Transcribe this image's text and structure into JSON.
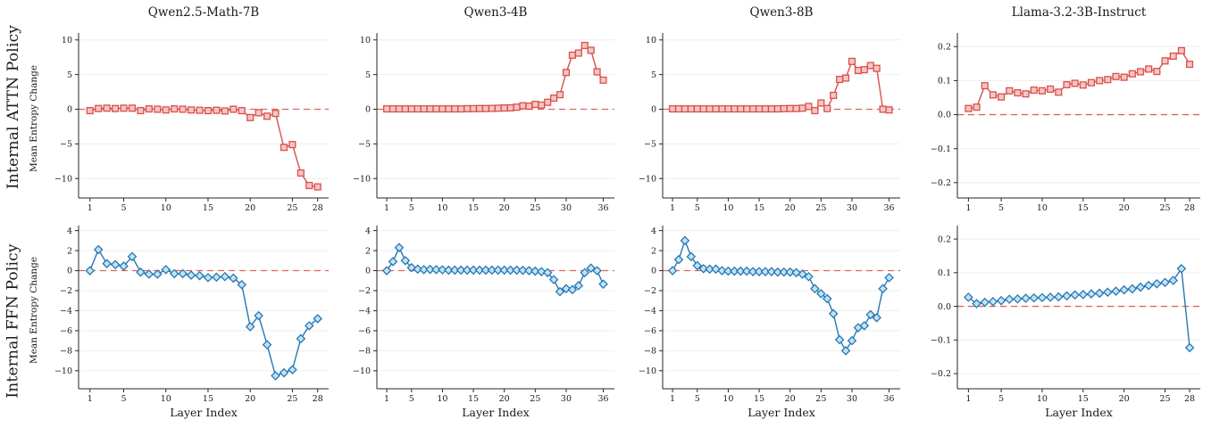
{
  "figure": {
    "row_labels": [
      "Internal ATTN Policy",
      "Internal FFN Policy"
    ],
    "y_axis_label": "Mean Entropy Change",
    "x_axis_label": "Layer Index",
    "colors": {
      "attn_line": "#d9504b",
      "attn_marker_fill": "#f6c6c3",
      "ffn_line": "#2678b2",
      "ffn_marker_fill": "#c3e2f4",
      "zero_line": "#e0635e",
      "axis": "#262626"
    }
  },
  "chart_data": [
    {
      "type": "line",
      "title": "Qwen2.5-Math-7B",
      "policy": "Internal ATTN Policy",
      "marker": "square",
      "line_color": "#d9504b",
      "marker_fill": "#f6c6c3",
      "zero_line": true,
      "x_first": 1,
      "x_last": 28,
      "xlim": [
        -0.35,
        29.3
      ],
      "ylim": [
        -12.8,
        11.0
      ],
      "xticks": [
        1,
        5,
        10,
        15,
        20,
        25,
        28
      ],
      "xtick_labels": [
        "1",
        "5",
        "10",
        "15",
        "20",
        "25",
        "28"
      ],
      "yticks": [
        10,
        5,
        0,
        -5,
        -10
      ],
      "ytick_labels": [
        "10",
        "5",
        "0",
        "−5",
        "−10"
      ],
      "values": [
        -0.2,
        0.1,
        0.15,
        0.1,
        0.15,
        0.15,
        -0.2,
        0.05,
        0.0,
        -0.1,
        0.05,
        0.0,
        -0.1,
        -0.15,
        -0.2,
        -0.15,
        -0.25,
        0.0,
        -0.2,
        -1.2,
        -0.5,
        -1.0,
        -0.6,
        -5.5,
        -5.1,
        -9.2,
        -11.0,
        -11.2
      ]
    },
    {
      "type": "line",
      "title": "Qwen3-4B",
      "policy": "Internal ATTN Policy",
      "marker": "square",
      "line_color": "#d9504b",
      "marker_fill": "#f6c6c3",
      "zero_line": true,
      "x_first": 1,
      "x_last": 36,
      "xlim": [
        -0.6,
        37.8
      ],
      "ylim": [
        -12.8,
        11.0
      ],
      "xticks": [
        1,
        5,
        10,
        15,
        20,
        25,
        30,
        36
      ],
      "xtick_labels": [
        "1",
        "5",
        "10",
        "15",
        "20",
        "25",
        "30",
        "36"
      ],
      "yticks": [
        10,
        5,
        0,
        -5,
        -10
      ],
      "ytick_labels": [
        "10",
        "5",
        "0",
        "−5",
        "−10"
      ],
      "values": [
        0.05,
        0.05,
        0.05,
        0.05,
        0.05,
        0.05,
        0.05,
        0.05,
        0.05,
        0.05,
        0.05,
        0.05,
        0.05,
        0.08,
        0.08,
        0.1,
        0.1,
        0.12,
        0.15,
        0.18,
        0.2,
        0.3,
        0.5,
        0.45,
        0.7,
        0.6,
        1.0,
        1.6,
        2.1,
        5.3,
        7.8,
        8.1,
        9.2,
        8.5,
        5.4,
        4.2
      ]
    },
    {
      "type": "line",
      "title": "Qwen3-8B",
      "policy": "Internal ATTN Policy",
      "marker": "square",
      "line_color": "#d9504b",
      "marker_fill": "#f6c6c3",
      "zero_line": true,
      "x_first": 1,
      "x_last": 36,
      "xlim": [
        -0.6,
        37.8
      ],
      "ylim": [
        -12.8,
        11.0
      ],
      "xticks": [
        1,
        5,
        10,
        15,
        20,
        25,
        30,
        36
      ],
      "xtick_labels": [
        "1",
        "5",
        "10",
        "15",
        "20",
        "25",
        "30",
        "36"
      ],
      "yticks": [
        10,
        5,
        0,
        -5,
        -10
      ],
      "ytick_labels": [
        "10",
        "5",
        "0",
        "−5",
        "−10"
      ],
      "values": [
        0.05,
        0.05,
        0.05,
        0.05,
        0.05,
        0.05,
        0.05,
        0.05,
        0.05,
        0.05,
        0.05,
        0.05,
        0.05,
        0.05,
        0.05,
        0.05,
        0.05,
        0.05,
        0.08,
        0.1,
        0.1,
        0.15,
        0.4,
        -0.2,
        0.9,
        0.1,
        2.0,
        4.3,
        4.5,
        6.9,
        5.6,
        5.7,
        6.3,
        5.9,
        0.0,
        -0.1
      ]
    },
    {
      "type": "line",
      "title": "Llama-3.2-3B-Instruct",
      "policy": "Internal ATTN Policy",
      "marker": "square",
      "line_color": "#d9504b",
      "marker_fill": "#f6c6c3",
      "zero_line": true,
      "x_first": 1,
      "x_last": 28,
      "xlim": [
        -0.35,
        29.3
      ],
      "ylim": [
        -0.245,
        0.24
      ],
      "xticks": [
        1,
        5,
        10,
        15,
        20,
        25,
        28
      ],
      "xtick_labels": [
        "1",
        "5",
        "10",
        "15",
        "20",
        "25",
        "28"
      ],
      "yticks": [
        0.2,
        0.1,
        0.0,
        -0.1,
        -0.2
      ],
      "ytick_labels": [
        "0.2",
        "0.1",
        "0.0",
        "−0.1",
        "−0.2"
      ],
      "values": [
        0.018,
        0.022,
        0.085,
        0.058,
        0.052,
        0.07,
        0.064,
        0.061,
        0.072,
        0.07,
        0.075,
        0.066,
        0.088,
        0.092,
        0.087,
        0.094,
        0.1,
        0.103,
        0.112,
        0.11,
        0.12,
        0.126,
        0.134,
        0.127,
        0.158,
        0.172,
        0.188,
        0.148
      ]
    },
    {
      "type": "line",
      "policy": "Internal FFN Policy",
      "marker": "diamond",
      "line_color": "#2678b2",
      "marker_fill": "#c3e2f4",
      "zero_line": true,
      "x_first": 1,
      "x_last": 28,
      "xlim": [
        -0.35,
        29.3
      ],
      "ylim": [
        -11.8,
        4.5
      ],
      "xticks": [
        1,
        5,
        10,
        15,
        20,
        25,
        28
      ],
      "xtick_labels": [
        "1",
        "5",
        "10",
        "15",
        "20",
        "25",
        "28"
      ],
      "yticks": [
        4,
        2,
        0,
        -2,
        -4,
        -6,
        -8,
        -10
      ],
      "ytick_labels": [
        "4",
        "2",
        "0",
        "−2",
        "−4",
        "−6",
        "−8",
        "−10"
      ],
      "values": [
        0.0,
        2.1,
        0.7,
        0.6,
        0.45,
        1.4,
        -0.15,
        -0.35,
        -0.35,
        0.1,
        -0.3,
        -0.3,
        -0.45,
        -0.5,
        -0.7,
        -0.65,
        -0.6,
        -0.75,
        -1.4,
        -5.6,
        -4.5,
        -7.4,
        -10.5,
        -10.2,
        -9.9,
        -6.8,
        -5.5,
        -4.8
      ]
    },
    {
      "type": "line",
      "policy": "Internal FFN Policy",
      "marker": "diamond",
      "line_color": "#2678b2",
      "marker_fill": "#c3e2f4",
      "zero_line": true,
      "x_first": 1,
      "x_last": 36,
      "xlim": [
        -0.6,
        37.8
      ],
      "ylim": [
        -11.8,
        4.5
      ],
      "xticks": [
        1,
        5,
        10,
        15,
        20,
        25,
        30,
        36
      ],
      "xtick_labels": [
        "1",
        "5",
        "10",
        "15",
        "20",
        "25",
        "30",
        "36"
      ],
      "yticks": [
        4,
        2,
        0,
        -2,
        -4,
        -6,
        -8,
        -10
      ],
      "ytick_labels": [
        "4",
        "2",
        "0",
        "−2",
        "−4",
        "−6",
        "−8",
        "−10"
      ],
      "values": [
        0.0,
        0.9,
        2.3,
        1.0,
        0.3,
        0.15,
        0.1,
        0.12,
        0.1,
        0.08,
        0.05,
        0.05,
        0.05,
        0.05,
        0.05,
        0.05,
        0.05,
        0.05,
        0.05,
        0.05,
        0.05,
        0.05,
        0.03,
        0.0,
        -0.05,
        -0.1,
        -0.2,
        -0.9,
        -2.1,
        -1.8,
        -1.9,
        -1.5,
        -0.2,
        0.25,
        0.0,
        -1.35
      ]
    },
    {
      "type": "line",
      "policy": "Internal FFN Policy",
      "marker": "diamond",
      "line_color": "#2678b2",
      "marker_fill": "#c3e2f4",
      "zero_line": true,
      "x_first": 1,
      "x_last": 36,
      "xlim": [
        -0.6,
        37.8
      ],
      "ylim": [
        -11.8,
        4.5
      ],
      "xticks": [
        1,
        5,
        10,
        15,
        20,
        25,
        30,
        36
      ],
      "xtick_labels": [
        "1",
        "5",
        "10",
        "15",
        "20",
        "25",
        "30",
        "36"
      ],
      "yticks": [
        4,
        2,
        0,
        -2,
        -4,
        -6,
        -8,
        -10
      ],
      "ytick_labels": [
        "4",
        "2",
        "0",
        "−2",
        "−4",
        "−6",
        "−8",
        "−10"
      ],
      "values": [
        0.0,
        1.1,
        3.0,
        1.4,
        0.5,
        0.2,
        0.15,
        0.15,
        0.0,
        -0.05,
        -0.05,
        -0.05,
        -0.05,
        -0.1,
        -0.1,
        -0.1,
        -0.1,
        -0.15,
        -0.15,
        -0.15,
        -0.2,
        -0.35,
        -0.6,
        -1.8,
        -2.3,
        -2.8,
        -4.3,
        -6.9,
        -8.0,
        -7.0,
        -5.7,
        -5.5,
        -4.4,
        -4.7,
        -1.8,
        -0.7
      ]
    },
    {
      "type": "line",
      "policy": "Internal FFN Policy",
      "marker": "diamond",
      "line_color": "#2678b2",
      "marker_fill": "#c3e2f4",
      "zero_line": true,
      "x_first": 1,
      "x_last": 28,
      "xlim": [
        -0.35,
        29.3
      ],
      "ylim": [
        -0.245,
        0.24
      ],
      "xticks": [
        1,
        5,
        10,
        15,
        20,
        25,
        28
      ],
      "xtick_labels": [
        "1",
        "5",
        "10",
        "15",
        "20",
        "25",
        "28"
      ],
      "yticks": [
        0.2,
        0.1,
        0.0,
        -0.1,
        -0.2
      ],
      "ytick_labels": [
        "0.2",
        "0.1",
        "0.0",
        "−0.1",
        "−0.2"
      ],
      "values": [
        0.027,
        0.008,
        0.012,
        0.014,
        0.017,
        0.021,
        0.022,
        0.024,
        0.025,
        0.026,
        0.027,
        0.028,
        0.031,
        0.034,
        0.035,
        0.037,
        0.039,
        0.042,
        0.045,
        0.049,
        0.052,
        0.057,
        0.062,
        0.067,
        0.071,
        0.077,
        0.112,
        -0.123
      ]
    }
  ]
}
